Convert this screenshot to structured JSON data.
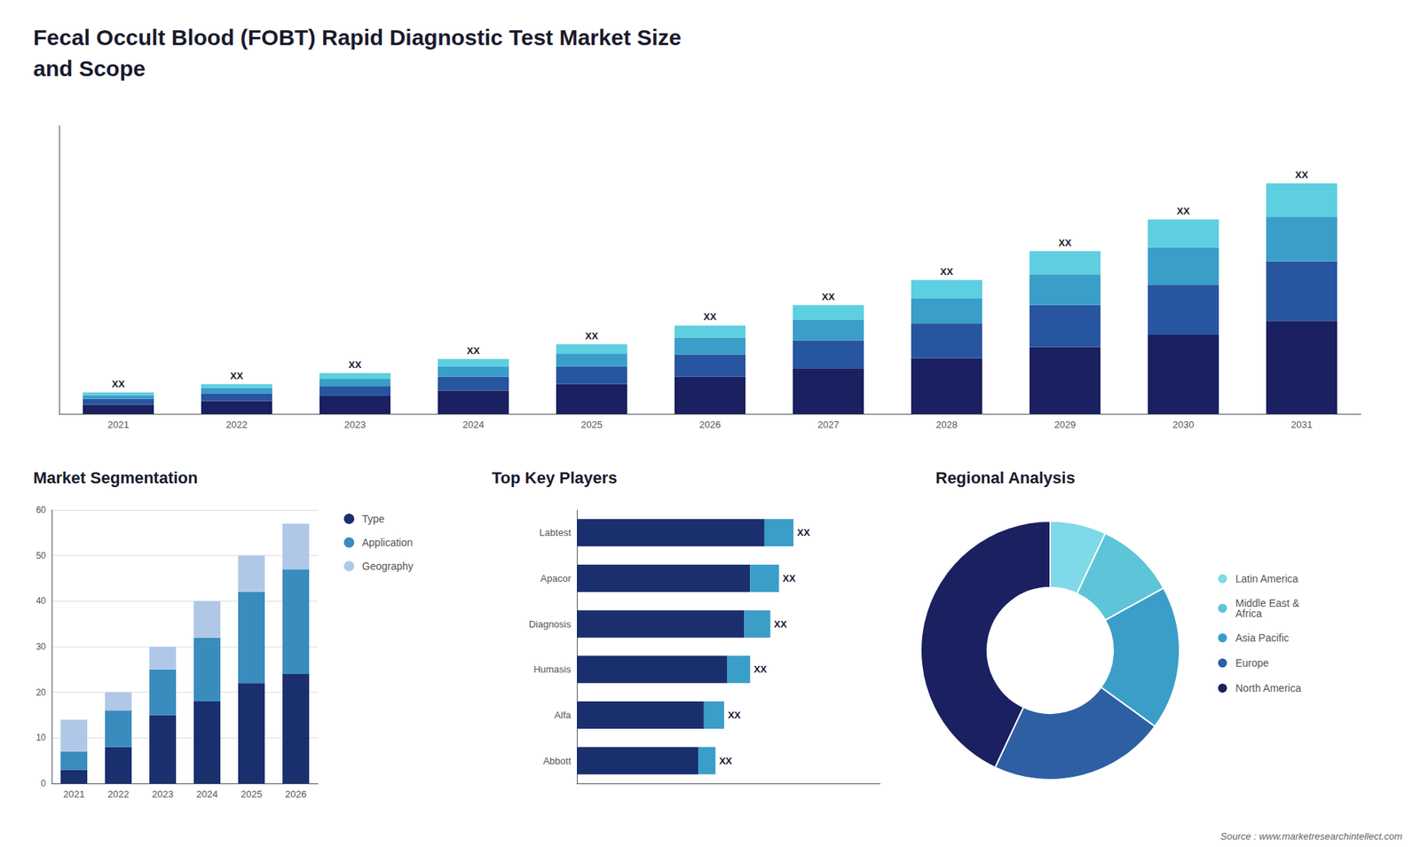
{
  "title": "Fecal Occult Blood (FOBT) Rapid Diagnostic Test Market Size\nand Scope",
  "annotations": [
    "Source : www.marketresearchintellect.com"
  ],
  "chart_data": [
    {
      "type": "bar",
      "stacked": true,
      "categories": [
        "2021",
        "2022",
        "2023",
        "2024",
        "2025",
        "2026",
        "2027",
        "2028",
        "2029",
        "2030",
        "2031"
      ],
      "series": [
        {
          "color": "#1a2060",
          "values": [
            1.0,
            1.4,
            1.9,
            2.5,
            3.2,
            4.0,
            4.9,
            6.0,
            7.2,
            8.5,
            10.0
          ]
        },
        {
          "color": "#2855a0",
          "values": [
            0.6,
            0.8,
            1.1,
            1.5,
            1.9,
            2.4,
            3.0,
            3.7,
            4.5,
            5.4,
            6.4
          ]
        },
        {
          "color": "#3a9ec9",
          "values": [
            0.4,
            0.6,
            0.8,
            1.1,
            1.4,
            1.8,
            2.2,
            2.7,
            3.3,
            4.0,
            4.8
          ]
        },
        {
          "color": "#5ecfe0",
          "values": [
            0.3,
            0.4,
            0.6,
            0.8,
            1.0,
            1.3,
            1.6,
            2.0,
            2.5,
            3.0,
            3.6
          ]
        }
      ],
      "annotations": [
        "XX",
        "XX",
        "XX",
        "XX",
        "XX",
        "XX",
        "XX",
        "XX",
        "XX",
        "XX",
        "XX"
      ],
      "ylim": [
        0,
        31
      ],
      "tick_labels": "x",
      "grid": false
    },
    {
      "type": "bar",
      "title": "Market Segmentation",
      "stacked": true,
      "categories": [
        "2021",
        "2022",
        "2023",
        "2024",
        "2025",
        "2026"
      ],
      "series": [
        {
          "name": "Type",
          "color": "#1a2f6e",
          "values": [
            3,
            8,
            15,
            18,
            22,
            24
          ]
        },
        {
          "name": "Application",
          "color": "#3a8cbf",
          "values": [
            4,
            8,
            10,
            14,
            20,
            23
          ]
        },
        {
          "name": "Geography",
          "color": "#b0c8e8",
          "values": [
            7,
            4,
            5,
            8,
            8,
            10
          ]
        }
      ],
      "ylim": [
        0,
        60
      ],
      "yticks": [
        0,
        10,
        20,
        30,
        40,
        50,
        60
      ],
      "grid": true,
      "legend": "right"
    },
    {
      "type": "bar",
      "title": "Top Key Players",
      "orientation": "horizontal",
      "stacked": true,
      "categories": [
        "Labtest",
        "Apacor",
        "Diagnosis",
        "Humasis",
        "Alfa",
        "Abbott"
      ],
      "series": [
        {
          "color": "#1a2f6e",
          "values": [
            6.5,
            6.0,
            5.8,
            5.2,
            4.4,
            4.2
          ]
        },
        {
          "color": "#3a9ec9",
          "values": [
            1.0,
            1.0,
            0.9,
            0.8,
            0.7,
            0.6
          ]
        }
      ],
      "annotations": [
        "XX",
        "XX",
        "XX",
        "XX",
        "XX",
        "XX"
      ],
      "xlim": [
        0,
        10.5
      ],
      "tick_labels": "y",
      "grid": false
    },
    {
      "type": "pie",
      "title": "Regional Analysis",
      "categories": [
        "Latin America",
        "Middle East &\nAfrica",
        "Asia Pacific",
        "Europe",
        "North America"
      ],
      "values": [
        7,
        10,
        18,
        22,
        43
      ],
      "colors": [
        "#7fd9e8",
        "#5ec4d8",
        "#3a9ec9",
        "#2e5fa3",
        "#1a2060"
      ],
      "legend": "right"
    }
  ]
}
